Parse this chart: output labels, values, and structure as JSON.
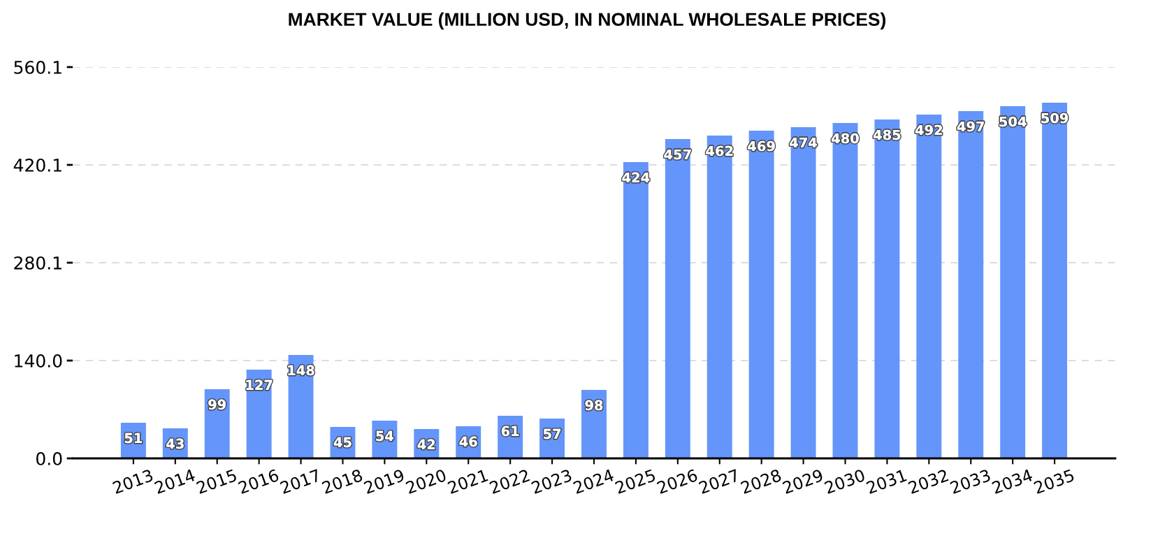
{
  "chart_data": {
    "type": "bar",
    "title": "MARKET VALUE (MILLION USD, IN NOMINAL WHOLESALE PRICES)",
    "categories": [
      "2013",
      "2014",
      "2015",
      "2016",
      "2017",
      "2018",
      "2019",
      "2020",
      "2021",
      "2022",
      "2023",
      "2024",
      "2025",
      "2026",
      "2027",
      "2028",
      "2029",
      "2030",
      "2031",
      "2032",
      "2033",
      "2034",
      "2035"
    ],
    "values": [
      51,
      43,
      99,
      127,
      148,
      45,
      54,
      42,
      46,
      61,
      57,
      98,
      424,
      457,
      462,
      469,
      474,
      480,
      485,
      492,
      497,
      504,
      509
    ],
    "color": "#6495fa",
    "ylim": [
      0,
      560.1
    ],
    "yticks": [
      {
        "value": 0,
        "label": "0.0"
      },
      {
        "value": 140,
        "label": "140.0"
      },
      280.1,
      420.1,
      560.1
    ],
    "grid": "y",
    "data_labels": true
  }
}
